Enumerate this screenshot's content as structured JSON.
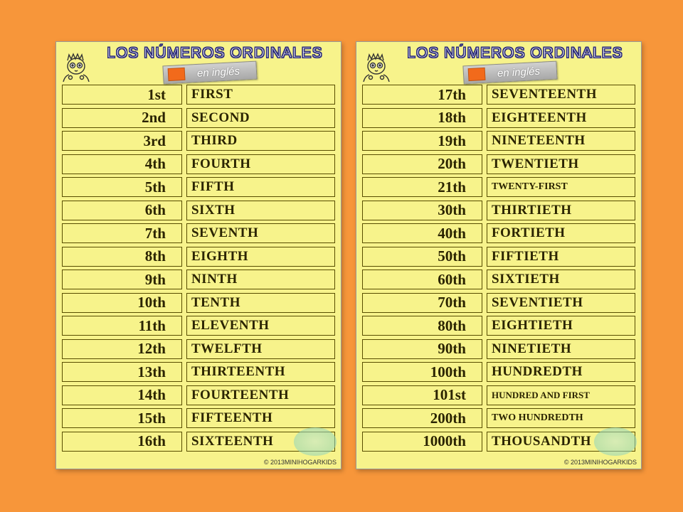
{
  "background_color": "#f7963a",
  "card_color": "#f7f38b",
  "cell_border_color": "#584d00",
  "text_color": "#2b2400",
  "title": "LOS NÚMEROS ORDINALES",
  "subtitle": "en inglés",
  "subtitle_chip_color": "#f26a1b",
  "credit": "© 2013MINIHOGARKIDS",
  "left_rows": [
    {
      "num": "1st",
      "word": "FIRST"
    },
    {
      "num": "2nd",
      "word": "SECOND"
    },
    {
      "num": "3rd",
      "word": "THIRD"
    },
    {
      "num": "4th",
      "word": "FOURTH"
    },
    {
      "num": "5th",
      "word": "FIFTH"
    },
    {
      "num": "6th",
      "word": "SIXTH"
    },
    {
      "num": "7th",
      "word": "SEVENTH"
    },
    {
      "num": "8th",
      "word": "EIGHTH"
    },
    {
      "num": "9th",
      "word": "NINTH"
    },
    {
      "num": "10th",
      "word": "TENTH"
    },
    {
      "num": "11th",
      "word": "ELEVENTH"
    },
    {
      "num": "12th",
      "word": "TWELFTH"
    },
    {
      "num": "13th",
      "word": "THIRTEENTH"
    },
    {
      "num": "14th",
      "word": "FOURTEENTH"
    },
    {
      "num": "15th",
      "word": "FIFTEENTH"
    },
    {
      "num": "16th",
      "word": "SIXTEENTH"
    }
  ],
  "right_rows": [
    {
      "num": "17th",
      "word": "SEVENTEENTH"
    },
    {
      "num": "18th",
      "word": "EIGHTEENTH"
    },
    {
      "num": "19th",
      "word": "NINETEENTH"
    },
    {
      "num": "20th",
      "word": "TWENTIETH"
    },
    {
      "num": "21th",
      "word": "TWENTY-FIRST",
      "size": "small"
    },
    {
      "num": "30th",
      "word": "THIRTIETH"
    },
    {
      "num": "40th",
      "word": "FORTIETH"
    },
    {
      "num": "50th",
      "word": "FIFTIETH"
    },
    {
      "num": "60th",
      "word": "SIXTIETH"
    },
    {
      "num": "70th",
      "word": "SEVENTIETH"
    },
    {
      "num": "80th",
      "word": "EIGHTIETH"
    },
    {
      "num": "90th",
      "word": "NINETIETH"
    },
    {
      "num": "100th",
      "word": "HUNDREDTH"
    },
    {
      "num": "101st",
      "word": "HUNDRED AND FIRST",
      "size": "xsmall"
    },
    {
      "num": "200th",
      "word": "TWO HUNDREDTH",
      "size": "small"
    },
    {
      "num": "1000th",
      "word": "THOUSANDTH"
    }
  ]
}
